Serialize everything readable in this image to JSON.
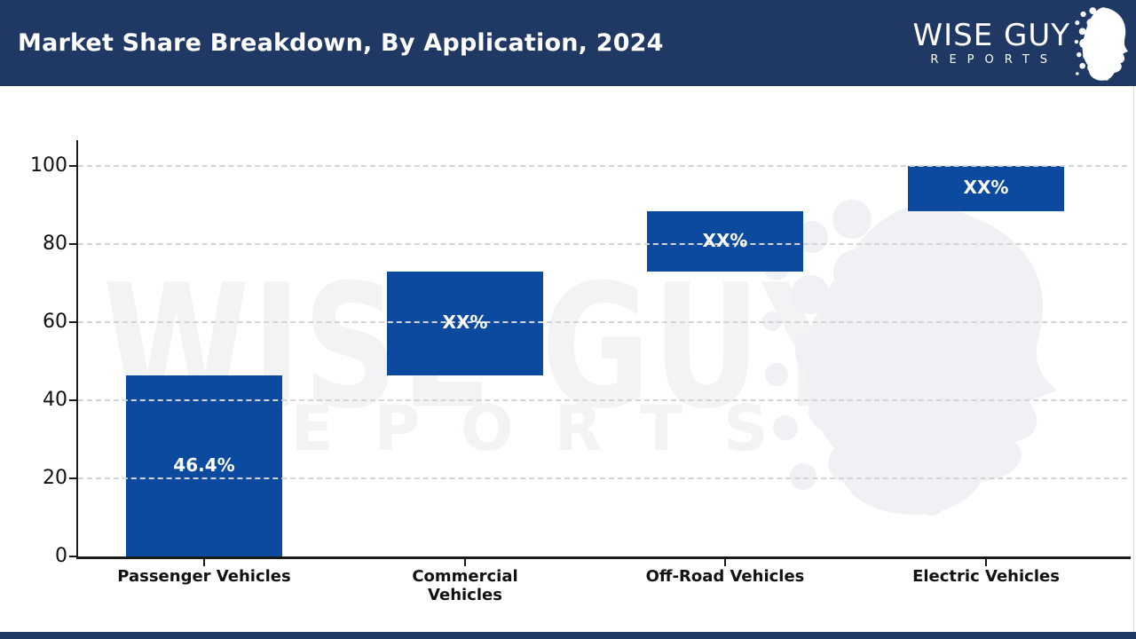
{
  "header": {
    "title": "Market Share Breakdown, By Application, 2024"
  },
  "logo": {
    "line1": "WISE GUY",
    "line2": "REPORTS"
  },
  "watermark": {
    "line1": "WISE GUY",
    "line2": "REPORTS"
  },
  "colors": {
    "header_bg": "#203864",
    "bar": "#0C4AA0",
    "bar_label": "#ffffff",
    "gridline": "#d4d4d4",
    "axis": "#1a1a1a",
    "watermark": "#f2f3f5"
  },
  "chart_data": {
    "type": "bar",
    "subtype": "floating-waterfall",
    "title": "Market Share Breakdown, By Application, 2024",
    "categories": [
      "Passenger Vehicles",
      "Commercial\nVehicles",
      "Off-Road Vehicles",
      "Electric Vehicles"
    ],
    "bars": [
      {
        "category": "Passenger Vehicles",
        "from": 0,
        "to": 46.4,
        "label": "46.4%"
      },
      {
        "category": "Commercial\nVehicles",
        "from": 46.4,
        "to": 73,
        "label": "XX%"
      },
      {
        "category": "Off-Road Vehicles",
        "from": 73,
        "to": 88.5,
        "label": "XX%"
      },
      {
        "category": "Electric Vehicles",
        "from": 88.5,
        "to": 100,
        "label": "XX%"
      }
    ],
    "ylim": [
      0,
      100
    ],
    "yticks": [
      0,
      20,
      40,
      60,
      80,
      100
    ],
    "xlabel": "",
    "ylabel": "",
    "grid": "dashed-horizontal-on-top",
    "legend": "none"
  }
}
